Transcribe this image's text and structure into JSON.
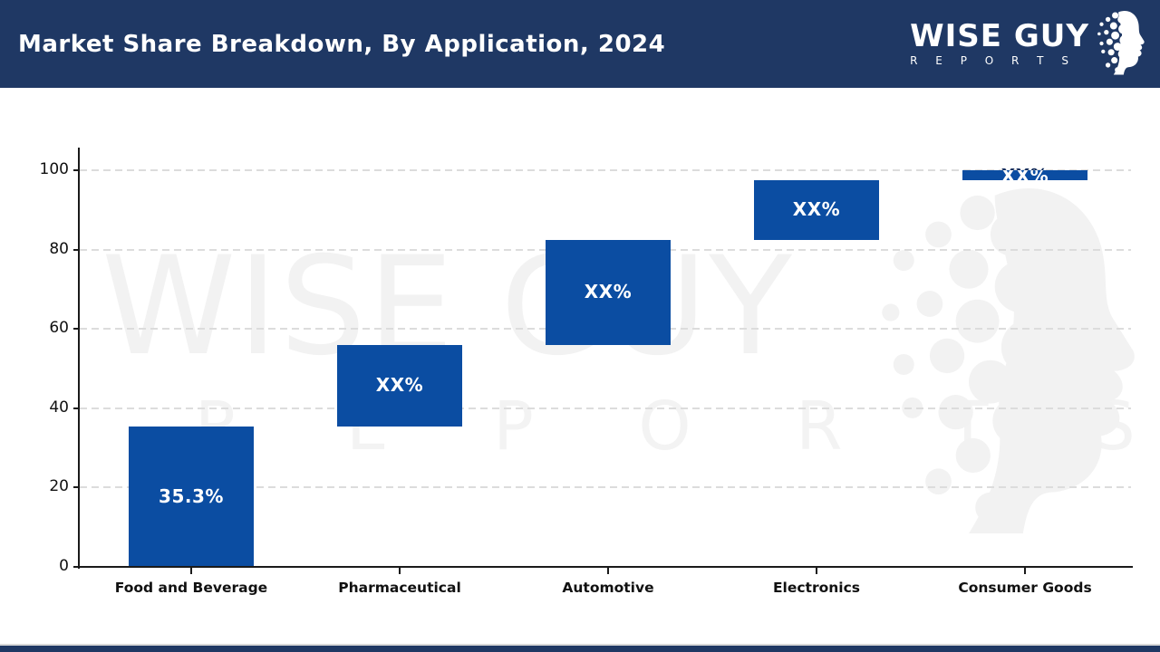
{
  "header": {
    "title": "Market Share Breakdown, By Application, 2024"
  },
  "logo": {
    "name": "WISE GUY",
    "subtitle": "R E P O R T S"
  },
  "watermark": {
    "line1": "WISE GUY",
    "line2": "R E P O R T S"
  },
  "colors": {
    "header_bg": "#1F3864",
    "footer_bg": "#1F3864",
    "bar": "#0B4DA2",
    "bar_label": "#FFFFFF",
    "overflow_label_dark": "#16305F",
    "grid": "#DCDCDC",
    "axis": "#1A1A1A",
    "watermark": "#F2F2F2"
  },
  "chart_data": {
    "type": "bar",
    "subtype": "waterfall",
    "title": "Market Share Breakdown, By Application, 2024",
    "categories": [
      "Food and Beverage",
      "Pharmaceutical",
      "Automotive",
      "Electronics",
      "Consumer Goods"
    ],
    "segments": [
      {
        "category": "Food and Beverage",
        "start": 0,
        "end": 35.3,
        "label": "35.3%"
      },
      {
        "category": "Pharmaceutical",
        "start": 35.3,
        "end": 56,
        "label": "XX%"
      },
      {
        "category": "Automotive",
        "start": 56,
        "end": 82.5,
        "label": "XX%"
      },
      {
        "category": "Electronics",
        "start": 82.5,
        "end": 97.5,
        "label": "XX%"
      },
      {
        "category": "Consumer Goods",
        "start": 97.5,
        "end": 100,
        "label": "XX%"
      }
    ],
    "xlabel": "",
    "ylabel": "",
    "ylim": [
      0,
      100
    ],
    "yticks": [
      0,
      20,
      40,
      60,
      80,
      100
    ],
    "grid": "horizontal-dashed",
    "legend": null
  }
}
